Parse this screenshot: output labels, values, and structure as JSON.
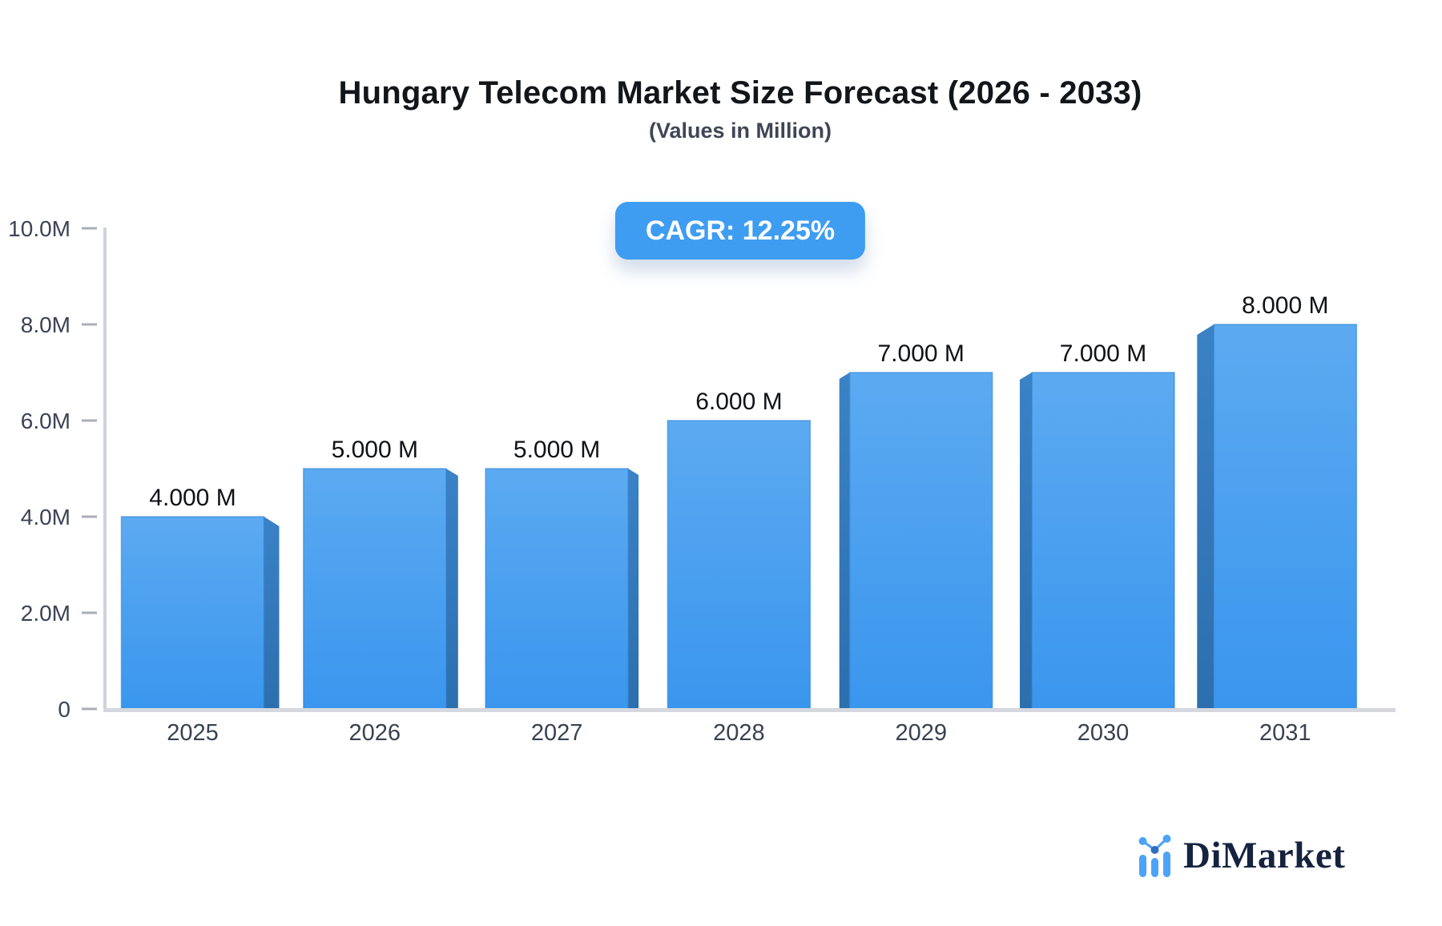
{
  "title": "Hungary Telecom Market Size Forecast (2026 - 2033)",
  "subtitle": "(Values in Million)",
  "cagr_badge": "CAGR: 12.25%",
  "brand": {
    "name": "DiMarket",
    "icon": "bar-line-chart-icon",
    "icon_color": "#4da3f7",
    "text_color": "#15233f"
  },
  "chart_data": {
    "type": "bar",
    "title": "Hungary Telecom Market Size Forecast (2026 - 2033)",
    "subtitle": "(Values in Million)",
    "unit": "Million",
    "cagr_percent_label": "CAGR: 12.25%",
    "categories": [
      "2025",
      "2026",
      "2027",
      "2028",
      "2029",
      "2030",
      "2031"
    ],
    "values": [
      4,
      5,
      5,
      6,
      7,
      7,
      8
    ],
    "bar_labels": [
      "4.000 M",
      "5.000 M",
      "5.000 M",
      "6.000 M",
      "7.000 M",
      "7.000 M",
      "8.000 M"
    ],
    "ylim": [
      0,
      10
    ],
    "y_ticks": [
      {
        "value": 0,
        "label": "0"
      },
      {
        "value": 2,
        "label": "2.0M"
      },
      {
        "value": 4,
        "label": "4.0M"
      },
      {
        "value": 6,
        "label": "6.0M"
      },
      {
        "value": 8,
        "label": "8.0M"
      },
      {
        "value": 10,
        "label": "10.0M"
      }
    ],
    "grid": false,
    "legend": false,
    "colors": {
      "bar_top": "#5caaf1",
      "bar_bottom": "#3a96ee",
      "bar_stroke": "#2e80cf",
      "bar_side_top": "#3a82c6",
      "bar_side_bottom": "#2c6fae",
      "axis_line": "#cfd3db",
      "baseline": "#d5d8de",
      "tick_dash": "#a9aeb7",
      "tick_label": "#3c4353",
      "value_label": "#101215",
      "badge_bg": "#3e9df1"
    }
  }
}
